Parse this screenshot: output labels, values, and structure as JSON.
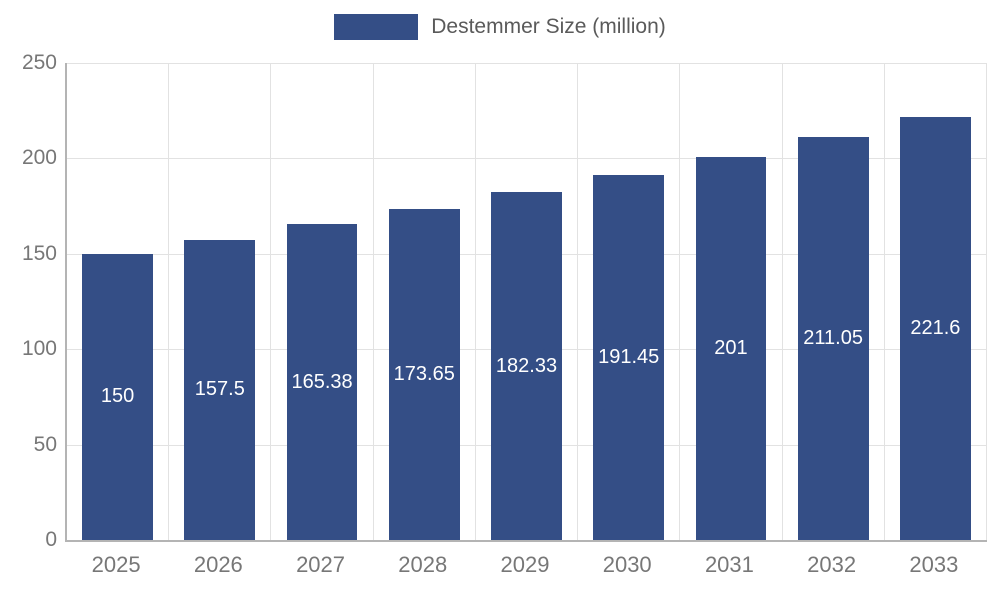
{
  "legend": {
    "label": "Destemmer Size (million)"
  },
  "colors": {
    "bar": "#344e86",
    "grid": "#e2e2e2",
    "axis": "#b4b4b4",
    "tick_text": "#777777",
    "value_text": "#ffffff",
    "legend_text": "#5a5a5a"
  },
  "chart_data": {
    "type": "bar",
    "title": "",
    "categories": [
      "2025",
      "2026",
      "2027",
      "2028",
      "2029",
      "2030",
      "2031",
      "2032",
      "2033"
    ],
    "values": [
      150,
      157.5,
      165.38,
      173.65,
      182.33,
      191.45,
      201,
      211.05,
      221.6
    ],
    "value_labels": [
      "150",
      "157.5",
      "165.38",
      "173.65",
      "182.33",
      "191.45",
      "201",
      "211.05",
      "221.6"
    ],
    "series_name": "Destemmer Size (million)",
    "xlabel": "",
    "ylabel": "",
    "ylim": [
      0,
      250
    ],
    "yticks": [
      0,
      50,
      100,
      150,
      200,
      250
    ],
    "grid": true,
    "legend_position": "top"
  }
}
